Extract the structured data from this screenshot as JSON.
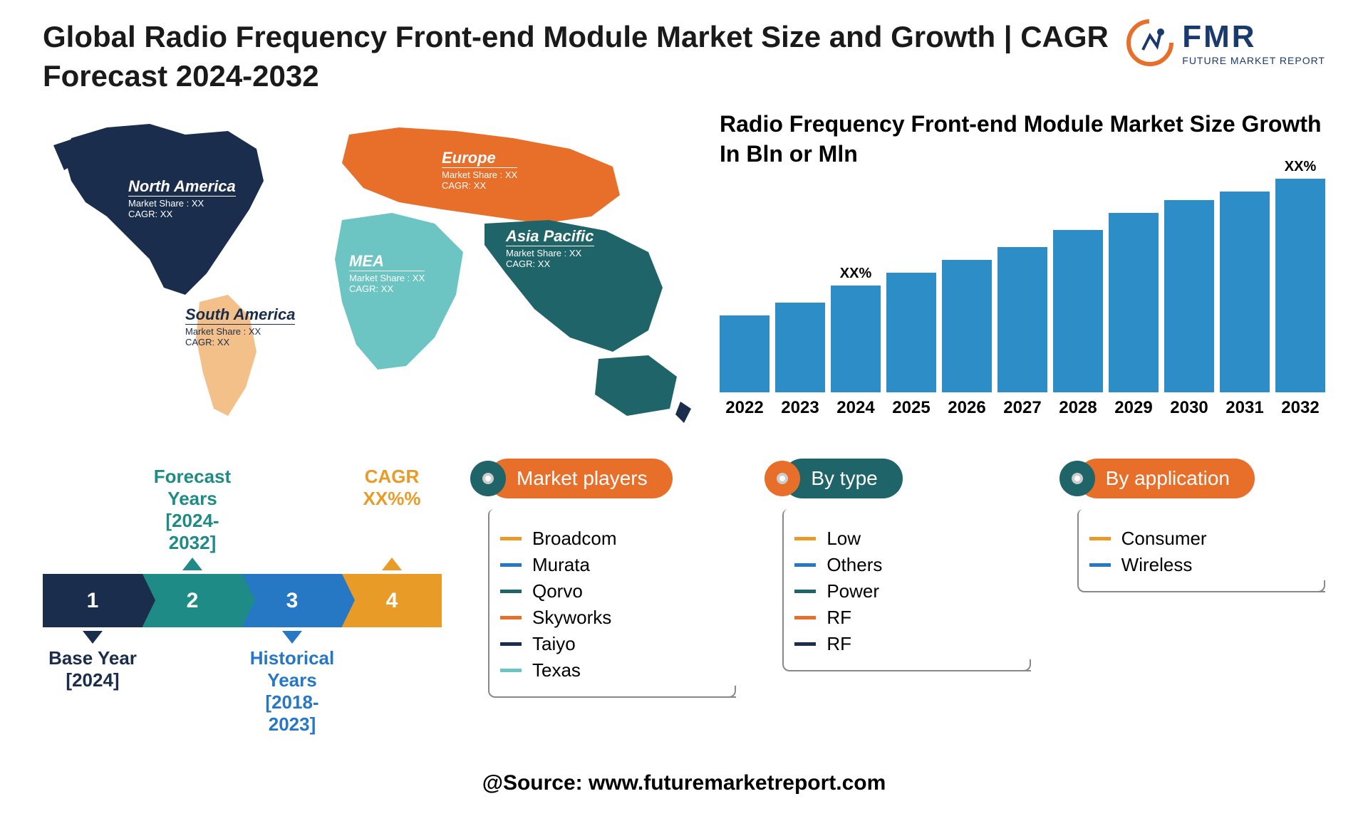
{
  "title_line1": "Global Radio Frequency Front-end Module Market Size and Growth | CAGR",
  "title_line2": "Forecast 2024-2032",
  "logo": {
    "fmr": "FMR",
    "sub": "FUTURE MARKET REPORT"
  },
  "map": {
    "regions": {
      "north_america": {
        "name": "North America",
        "share": "Market Share : XX",
        "cagr": "CAGR: XX",
        "color": "#1a2d4d"
      },
      "south_america": {
        "name": "South America",
        "share": "Market Share : XX",
        "cagr": "CAGR: XX",
        "color": "#f4c08a"
      },
      "europe": {
        "name": "Europe",
        "share": "Market Share : XX",
        "cagr": "CAGR: XX",
        "color": "#e76f2a"
      },
      "mea": {
        "name": "MEA",
        "share": "Market Share : XX",
        "cagr": "CAGR: XX",
        "color": "#6cc5c3"
      },
      "asia_pacific": {
        "name": "Asia Pacific",
        "share": "Market Share : XX",
        "cagr": "CAGR: XX",
        "color": "#1f6468"
      }
    }
  },
  "bar_chart": {
    "type": "bar",
    "title": "Radio Frequency Front-end Module Market Size Growth In Bln or Mln",
    "years": [
      "2022",
      "2023",
      "2024",
      "2025",
      "2026",
      "2027",
      "2028",
      "2029",
      "2030",
      "2031",
      "2032"
    ],
    "values": [
      36,
      42,
      50,
      56,
      62,
      68,
      76,
      84,
      90,
      94,
      100
    ],
    "annotations": {
      "2": "XX%",
      "10": "XX%"
    },
    "bar_color": "#2d8ec7",
    "label_fontsize": 24,
    "label_color": "#000000",
    "background_color": "#ffffff"
  },
  "timeline": {
    "forecast_label": "Forecast Years",
    "forecast_range": "[2024-2032]",
    "cagr_label": "CAGR",
    "cagr_value": "XX%%",
    "base_label": "Base Year",
    "base_range": "[2024]",
    "hist_label": "Historical Years",
    "hist_range": "[2018-2023]",
    "segments": [
      {
        "num": "1",
        "bg": "#1a2d4d"
      },
      {
        "num": "2",
        "bg": "#1f8b87"
      },
      {
        "num": "3",
        "bg": "#2778c4"
      },
      {
        "num": "4",
        "bg": "#e89b27"
      }
    ]
  },
  "pills": {
    "market_players": {
      "title": "Market players",
      "header_bg": "#e76f2a",
      "dot_bg": "#1f6468",
      "items": [
        {
          "label": "Broadcom",
          "color": "#e89b27"
        },
        {
          "label": "Murata",
          "color": "#2778c4"
        },
        {
          "label": "Qorvo",
          "color": "#1f6468"
        },
        {
          "label": "Skyworks",
          "color": "#e76f2a"
        },
        {
          "label": "Taiyo",
          "color": "#1a2d4d"
        },
        {
          "label": "Texas",
          "color": "#6cc5c3"
        }
      ]
    },
    "by_type": {
      "title": "By type",
      "header_bg": "#1f6468",
      "dot_bg": "#e76f2a",
      "items": [
        {
          "label": "Low",
          "color": "#e89b27"
        },
        {
          "label": "Others",
          "color": "#2778c4"
        },
        {
          "label": "Power",
          "color": "#1f6468"
        },
        {
          "label": "RF",
          "color": "#e76f2a"
        },
        {
          "label": "RF",
          "color": "#1a2d4d"
        }
      ]
    },
    "by_application": {
      "title": "By application",
      "header_bg": "#e76f2a",
      "dot_bg": "#1f6468",
      "items": [
        {
          "label": "Consumer",
          "color": "#e89b27"
        },
        {
          "label": "Wireless",
          "color": "#2778c4"
        }
      ]
    }
  },
  "source": "@Source: www.futuremarketreport.com"
}
